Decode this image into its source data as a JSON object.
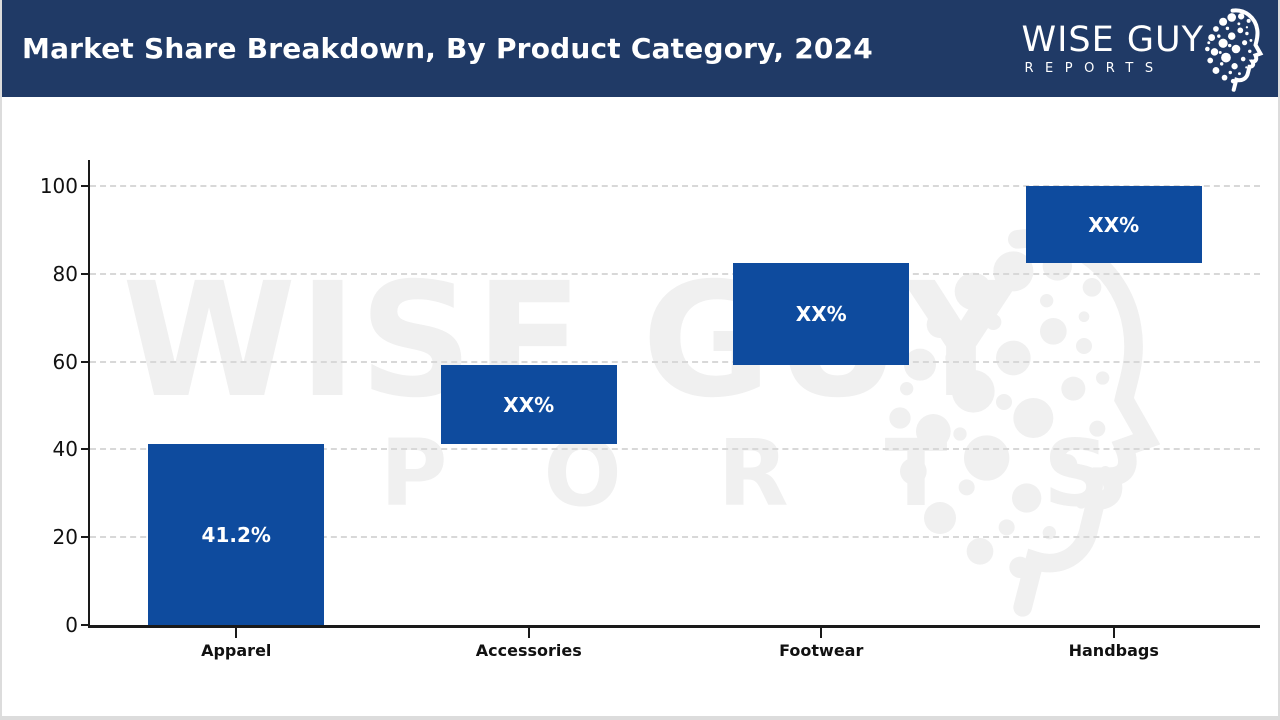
{
  "header": {
    "title": "Market Share Breakdown, By Product Category, 2024",
    "bg_color": "#203A66",
    "logo": {
      "line1": "WISE GUY",
      "line2": "REPORTS"
    }
  },
  "watermark": {
    "line1": "WISE GUY",
    "line2": "P O R T S",
    "color": "#f0f0f0"
  },
  "chart_data": {
    "type": "bar",
    "subtype": "waterfall",
    "title": "Market Share Breakdown, By Product Category, 2024",
    "categories": [
      "Apparel",
      "Accessories",
      "Footwear",
      "Handbags"
    ],
    "segments": [
      {
        "category": "Apparel",
        "start": 0,
        "end": 41.2,
        "label": "41.2%"
      },
      {
        "category": "Accessories",
        "start": 41.2,
        "end": 59.2,
        "label": "XX%"
      },
      {
        "category": "Footwear",
        "start": 59.2,
        "end": 82.4,
        "label": "XX%"
      },
      {
        "category": "Handbags",
        "start": 82.4,
        "end": 100,
        "label": "XX%"
      }
    ],
    "xlabel": "",
    "ylabel": "",
    "ylim": [
      0,
      100
    ],
    "yticks": [
      0,
      20,
      40,
      60,
      80,
      100
    ],
    "grid": "horizontal-dashed",
    "legend": "none",
    "bar_color": "#0E4B9E",
    "bar_label_color": "#ffffff",
    "grid_color": "#d8d8d8",
    "axis_color": "#1a1a1a"
  }
}
